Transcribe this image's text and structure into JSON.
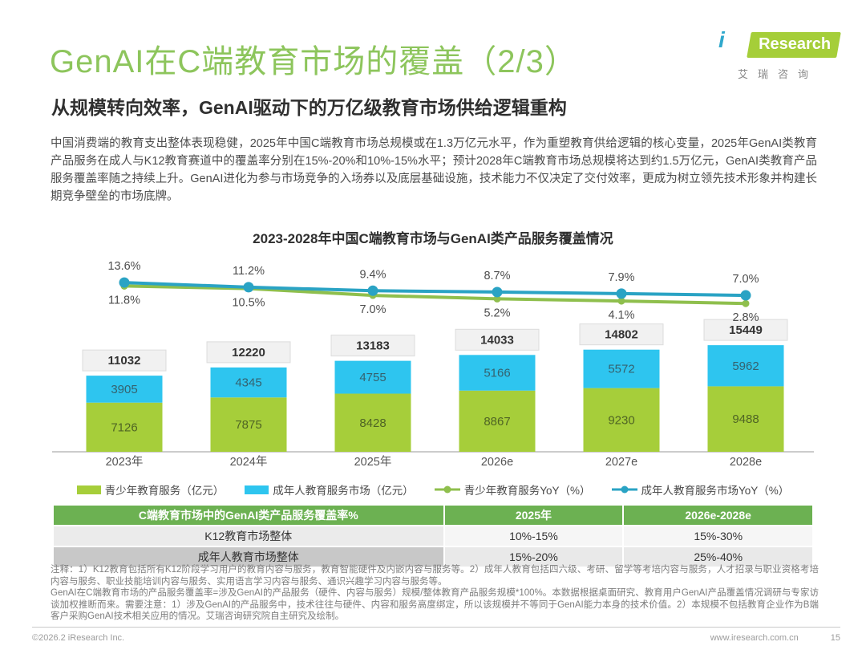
{
  "page": {
    "title": "GenAI在C端教育市场的覆盖（2/3）",
    "subtitle": "从规模转向效率，GenAI驱动下的万亿级教育市场供给逻辑重构",
    "body_paragraph": "中国消费端的教育支出整体表现稳健，2025年中国C端教育市场总规模或在1.3万亿元水平，作为重塑教育供给逻辑的核心变量，2025年GenAI类教育产品服务在成人与K12教育赛道中的覆盖率分别在15%-20%和10%-15%水平；预计2028年C端教育市场总规模将达到约1.5万亿元，GenAI类教育产品服务覆盖率随之持续上升。GenAI进化为参与市场竞争的入场券以及底层基础设施，技术能力不仅决定了交付效率，更成为树立领先技术形象并构建长期竞争壁垒的市场底牌。"
  },
  "logo": {
    "i": "i",
    "brand": "Research",
    "chinese": "艾瑞咨询"
  },
  "chart_data": {
    "type": "bar",
    "subtype": "stacked-bar-with-lines",
    "title": "2023-2028年中国C端教育市场与GenAI类产品服务覆盖情况",
    "categories": [
      "2023年",
      "2024年",
      "2025年",
      "2026e",
      "2027e",
      "2028e"
    ],
    "series": [
      {
        "name": "青少年教育服务（亿元）",
        "type": "bar",
        "color": "#a6ce3a",
        "values": [
          7126,
          7875,
          8428,
          8867,
          9230,
          9488
        ]
      },
      {
        "name": "成年人教育服务市场（亿元）",
        "type": "bar",
        "color": "#2ec5ef",
        "values": [
          3905,
          4345,
          4755,
          5166,
          5572,
          5962
        ]
      },
      {
        "name": "青少年教育服务YoY（%）",
        "type": "line",
        "color": "#8fbf4d",
        "values": [
          11.8,
          10.5,
          7.0,
          5.2,
          4.1,
          2.8
        ]
      },
      {
        "name": "成年人教育服务市场YoY（%）",
        "type": "line",
        "color": "#2aa3c4",
        "values": [
          13.6,
          11.2,
          9.4,
          8.7,
          7.9,
          7.0
        ]
      }
    ],
    "totals": [
      11032,
      12220,
      13183,
      14033,
      14802,
      15449
    ],
    "ylabel": "",
    "xlabel": "",
    "grid": false,
    "legend_position": "bottom"
  },
  "table": {
    "headers": [
      "C端教育市场中的GenAI类产品服务覆盖率%",
      "2025年",
      "2026e-2028e"
    ],
    "rows": [
      [
        "K12教育市场整体",
        "10%-15%",
        "15%-30%"
      ],
      [
        "成年人教育市场整体",
        "15%-20%",
        "25%-40%"
      ]
    ]
  },
  "notes": [
    "注释：1）K12教育包括所有K12阶段学习用户的教育内容与服务，教育智能硬件及内嵌内容与服务等。2）成年人教育包括四六级、考研、留学等考培内容与服务，人才招录与职业资格考培内容与服务、职业技能培训内容与服务、实用语言学习内容与服务、通识兴趣学习内容与服务等。",
    "GenAI在C端教育市场的产品服务覆盖率=涉及GenAI的产品服务（硬件、内容与服务）规模/整体教育产品服务规模*100%。本数据根据桌面研究、教育用户GenAI产品覆盖情况调研与专家访谈加权推断而来。需要注意：1）涉及GenAI的产品服务中，技术往往与硬件、内容和服务高度绑定，所以该规模并不等同于GenAI能力本身的技术价值。2）本规模不包括教育企业作为B端客户采购GenAI技术相关应用的情况。艾瑞咨询研究院自主研究及绘制。"
  ],
  "footer": {
    "copyright": "©2026.2 iResearch Inc.",
    "website": "www.iresearch.com.cn",
    "page_number": "15"
  },
  "colors": {
    "title_green": "#8dc55c",
    "table_header_green": "#6cb152",
    "bar_teen_green": "#a6ce3a",
    "bar_adult_cyan": "#2ec5ef",
    "line_teen_green": "#8fbf4d",
    "line_adult_teal": "#2aa3c4"
  }
}
